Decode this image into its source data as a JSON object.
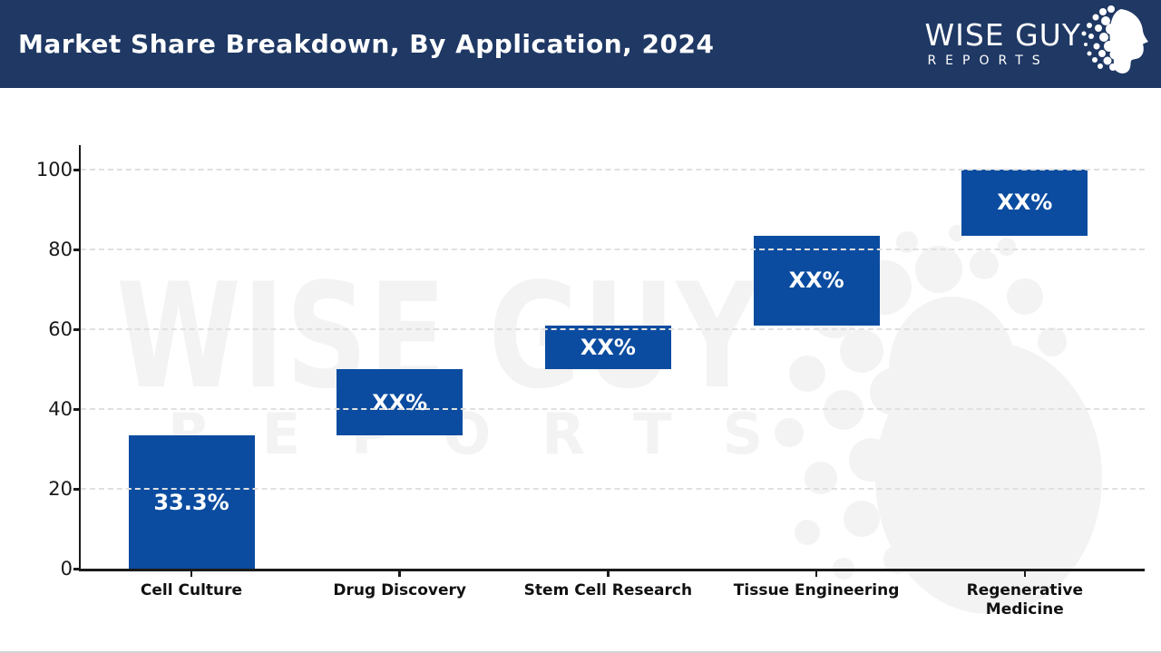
{
  "header": {
    "title": "Market Share Breakdown, By Application, 2024",
    "logo": {
      "line1": "WISE GUY",
      "line2": "REPORTS"
    }
  },
  "watermark": {
    "line1": "WISE GUY",
    "line2": "REPORTS"
  },
  "colors": {
    "header_bg": "#1F3864",
    "bar": "#0B4CA0",
    "bar_label": "#ffffff",
    "gridline": "#e0e0e0",
    "axis": "#1a1a1a",
    "watermark": "#f3f3f3"
  },
  "chart_data": {
    "type": "bar",
    "subtype": "floating-waterfall",
    "title": "Market Share Breakdown, By Application, 2024",
    "xlabel": "",
    "ylabel": "",
    "categories": [
      "Cell Culture",
      "Drug Discovery",
      "Stem Cell Research",
      "Tissue Engineering",
      "Regenerative\nMedicine"
    ],
    "bars": [
      {
        "category": "Cell Culture",
        "start": 0,
        "end": 33.3,
        "label": "33.3%"
      },
      {
        "category": "Drug Discovery",
        "start": 33.3,
        "end": 50,
        "label": "XX%"
      },
      {
        "category": "Stem Cell Research",
        "start": 50,
        "end": 61,
        "label": "XX%"
      },
      {
        "category": "Tissue Engineering",
        "start": 61,
        "end": 83.5,
        "label": "XX%"
      },
      {
        "category": "Regenerative Medicine",
        "start": 83.5,
        "end": 100,
        "label": "XX%"
      }
    ],
    "y_ticks": [
      0,
      20,
      40,
      60,
      80,
      100
    ],
    "ylim": [
      0,
      105
    ],
    "grid": "horizontal-dashed",
    "legend": "none"
  }
}
